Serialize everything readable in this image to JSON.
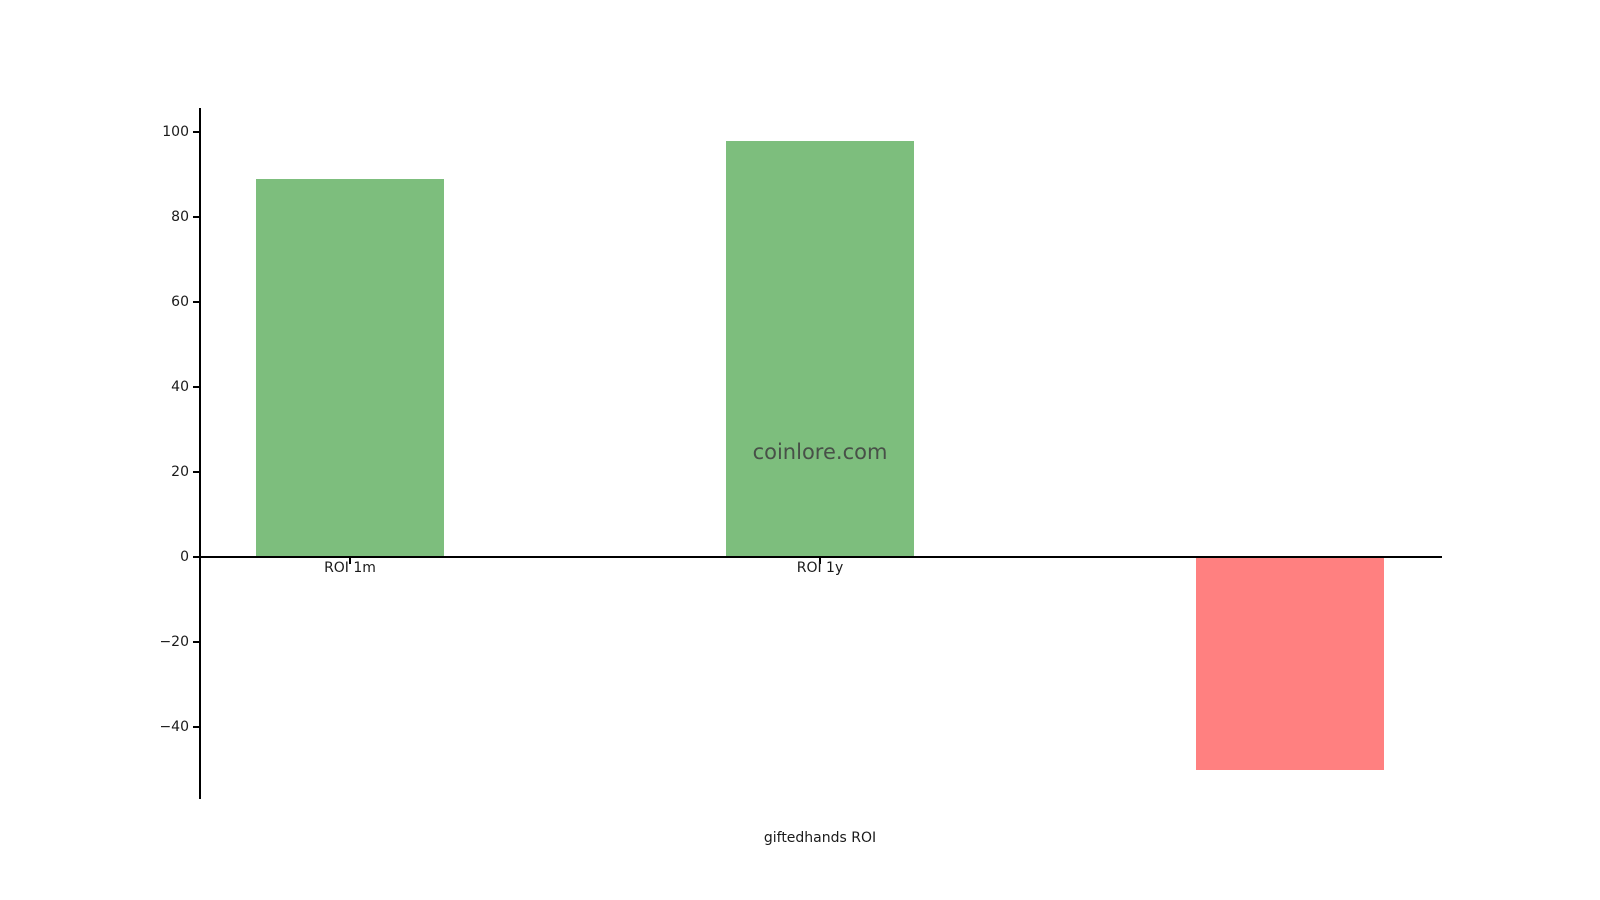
{
  "watermark": {
    "text": "coinlore.com",
    "color": "#414141"
  },
  "chart_data": {
    "type": "bar",
    "title": "giftedhands ROI",
    "xlabel": "giftedhands ROI",
    "ylabel": "",
    "categories": [
      "ROI 1m",
      "ROI 1y",
      ""
    ],
    "values": [
      89,
      98,
      -50
    ],
    "bar_colors": [
      "#7dbe7d",
      "#7dbe7d",
      "#ff8080"
    ],
    "positive_color": "#7dbe7d",
    "negative_color": "#ff8080",
    "ytick_values": [
      100,
      80,
      60,
      40,
      20,
      0,
      -20,
      -40
    ],
    "ytick_labels": [
      "100",
      "80",
      "60",
      "40",
      "20",
      "0",
      "−20",
      "−40"
    ],
    "ylim": [
      -57.4,
      105.4
    ],
    "grid": false,
    "legend": "none",
    "axis_color": "#000000",
    "watermark": "coinlore.com",
    "note_third_category_label_hidden_behind_bar": true
  }
}
